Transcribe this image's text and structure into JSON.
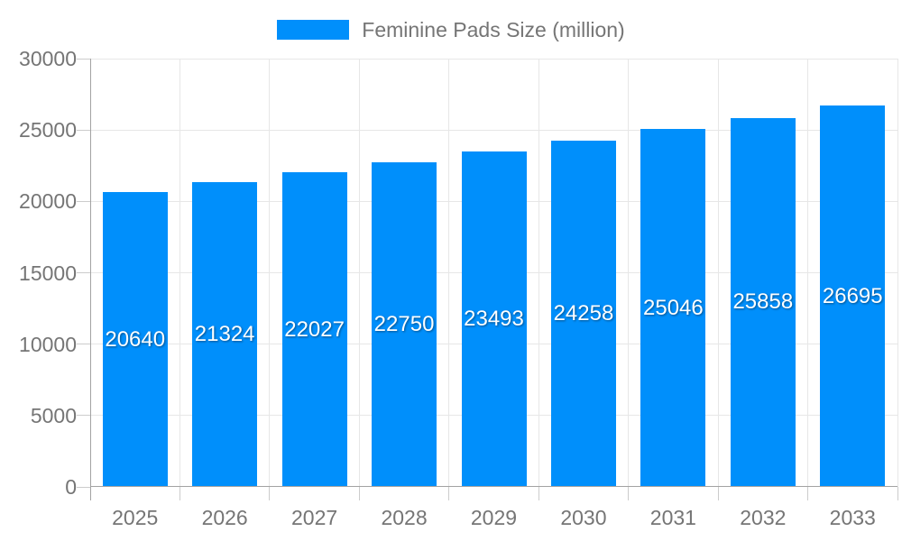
{
  "chart_data": {
    "type": "bar",
    "title": "Feminine Pads Size (million)",
    "categories": [
      "2025",
      "2026",
      "2027",
      "2028",
      "2029",
      "2030",
      "2031",
      "2032",
      "2033"
    ],
    "values": [
      20640,
      21324,
      22027,
      22750,
      23493,
      24258,
      25046,
      25858,
      26695
    ],
    "xlabel": "",
    "ylabel": "",
    "ylim": [
      0,
      30000
    ],
    "yticks": [
      0,
      5000,
      10000,
      15000,
      20000,
      25000,
      30000
    ],
    "grid": true,
    "legend_position": "top-center",
    "value_labels_position": "center-of-bar",
    "colors": {
      "bar": "#008FFB",
      "value_label": "#ffffff",
      "grid_line": "#e7e7e7",
      "axis_line": "#a3a3a3",
      "tick_mark": "#cccccc",
      "tick_text": "#757575",
      "legend_text": "#757575"
    }
  }
}
